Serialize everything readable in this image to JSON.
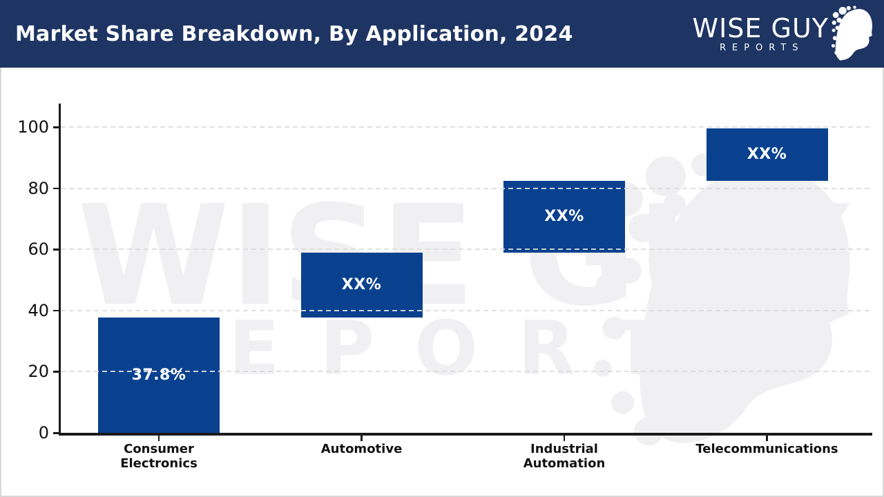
{
  "header": {
    "title": "Market Share Breakdown, By Application, 2024",
    "logo": {
      "line1": "WISE GUY",
      "line2": "REPORTS"
    }
  },
  "watermark": {
    "line1": "WISE GUY",
    "line2": "REPORTS"
  },
  "chart_data": {
    "type": "bar",
    "subtype": "waterfall-segments",
    "title": "Market Share Breakdown, By Application, 2024",
    "categories": [
      "Consumer Electronics",
      "Automotive",
      "Industrial Automation",
      "Telecommunications"
    ],
    "segments": [
      {
        "category": "Consumer Electronics",
        "start": 0,
        "end": 37.8,
        "label": "37.8%"
      },
      {
        "category": "Automotive",
        "start": 37.8,
        "end": 59.0,
        "label": "XX%"
      },
      {
        "category": "Industrial Automation",
        "start": 59.0,
        "end": 82.3,
        "label": "XX%"
      },
      {
        "category": "Telecommunications",
        "start": 82.3,
        "end": 99.5,
        "label": "XX%"
      }
    ],
    "y_ticks": [
      0,
      20,
      40,
      60,
      80,
      100
    ],
    "ylim": [
      0,
      107
    ],
    "xlabel": "",
    "ylabel": "",
    "grid": "horizontal-dashed",
    "legend": "none",
    "bar_color": "#0a418f",
    "bar_label_color": "#ffffff"
  },
  "colors": {
    "header_bg": "#1e3563",
    "header_text": "#ffffff",
    "bar": "#0a418f",
    "axis": "#1a1a1a",
    "gridline": "#dcdcdc",
    "watermark": "#f0f0f2",
    "page_border": "#d8d8d8",
    "background": "#ffffff"
  }
}
